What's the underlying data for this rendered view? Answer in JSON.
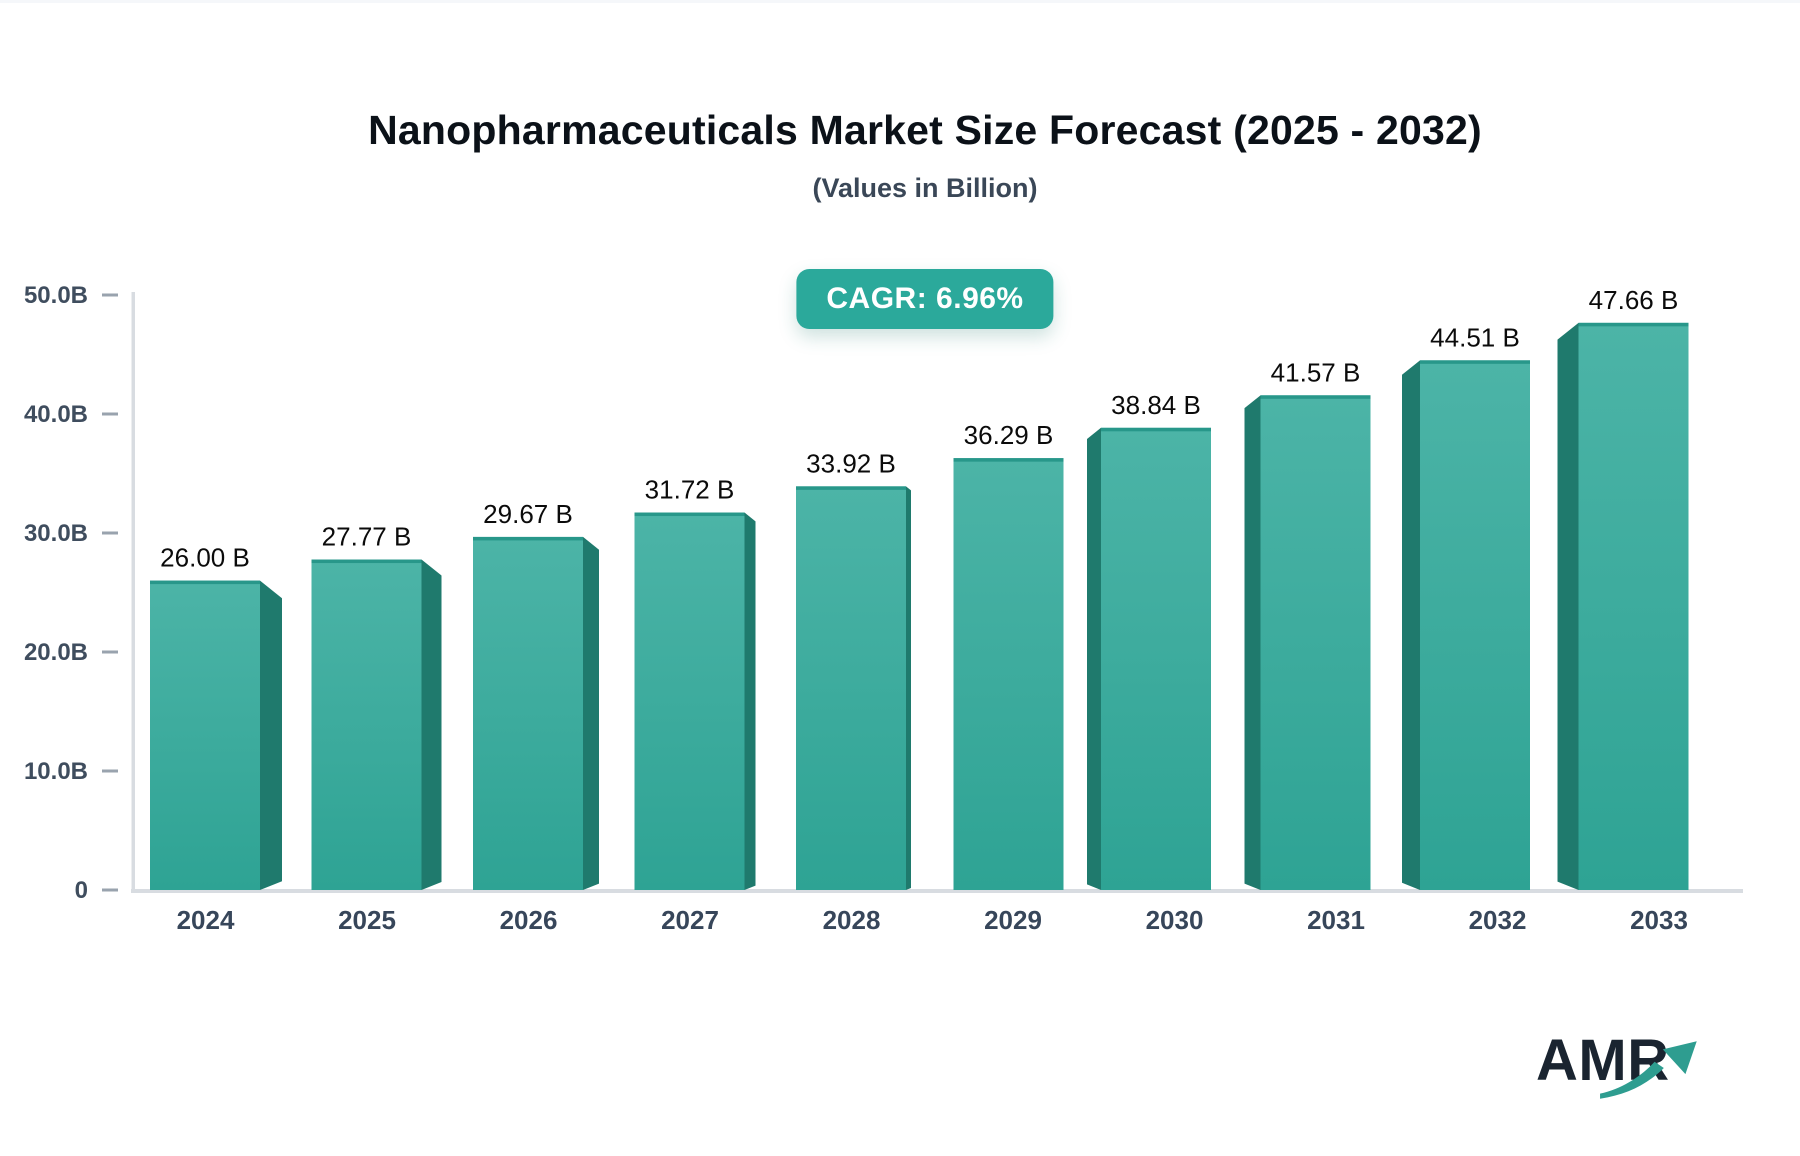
{
  "header": {
    "title": "Nanopharmaceuticals Market Size Forecast (2025 - 2032)",
    "subtitle": "(Values in Billion)",
    "cagr_label": "CAGR: 6.96%"
  },
  "brand": {
    "name": "AMR",
    "arrow_icon": "growth-arrow"
  },
  "colors": {
    "accent_teal": "#2BA99B",
    "bar_front_top": "#4CB4A7",
    "bar_front_bottom": "#2EA394",
    "bar_side": "#1F7A6D",
    "bar_top_edge": "#28978A",
    "axis_line": "#D8DCE1",
    "tick_mark": "#99A3AE",
    "axis_label": "#3F4D5E",
    "year_label": "#37465A",
    "value_label": "#0B0B0B",
    "title_color": "#0B1118",
    "subtitle_color": "#3A4757",
    "badge_text": "#FFFFFF",
    "logo_text": "#1A2430",
    "logo_arrow": "#2E9D90"
  },
  "chart_data": {
    "type": "bar",
    "title": "Nanopharmaceuticals Market Size Forecast (2025 - 2032)",
    "subtitle": "(Values in Billion)",
    "cagr_percent": 6.96,
    "cagr_label": "CAGR: 6.96%",
    "categories": [
      "2024",
      "2025",
      "2026",
      "2027",
      "2028",
      "2029",
      "2030",
      "2031",
      "2032",
      "2033"
    ],
    "values": [
      26.0,
      27.77,
      29.67,
      31.72,
      33.92,
      36.29,
      38.84,
      41.57,
      44.51,
      47.66
    ],
    "value_labels": [
      "26.00 B",
      "27.77 B",
      "29.67 B",
      "31.72 B",
      "33.92 B",
      "36.29 B",
      "38.84 B",
      "41.57 B",
      "44.51 B",
      "47.66 B"
    ],
    "unit": "B",
    "xlabel": "",
    "ylabel": "",
    "ylim": [
      0,
      50
    ],
    "y_ticks": [
      {
        "label": "50.0B",
        "value": 50
      },
      {
        "label": "40.0B",
        "value": 40
      },
      {
        "label": "30.0B",
        "value": 30
      },
      {
        "label": "20.0B",
        "value": 20
      },
      {
        "label": "10.0B",
        "value": 10
      },
      {
        "label": "0",
        "value": 0
      }
    ],
    "grid": false,
    "legend": false,
    "bar_style": "3d-perspective"
  }
}
